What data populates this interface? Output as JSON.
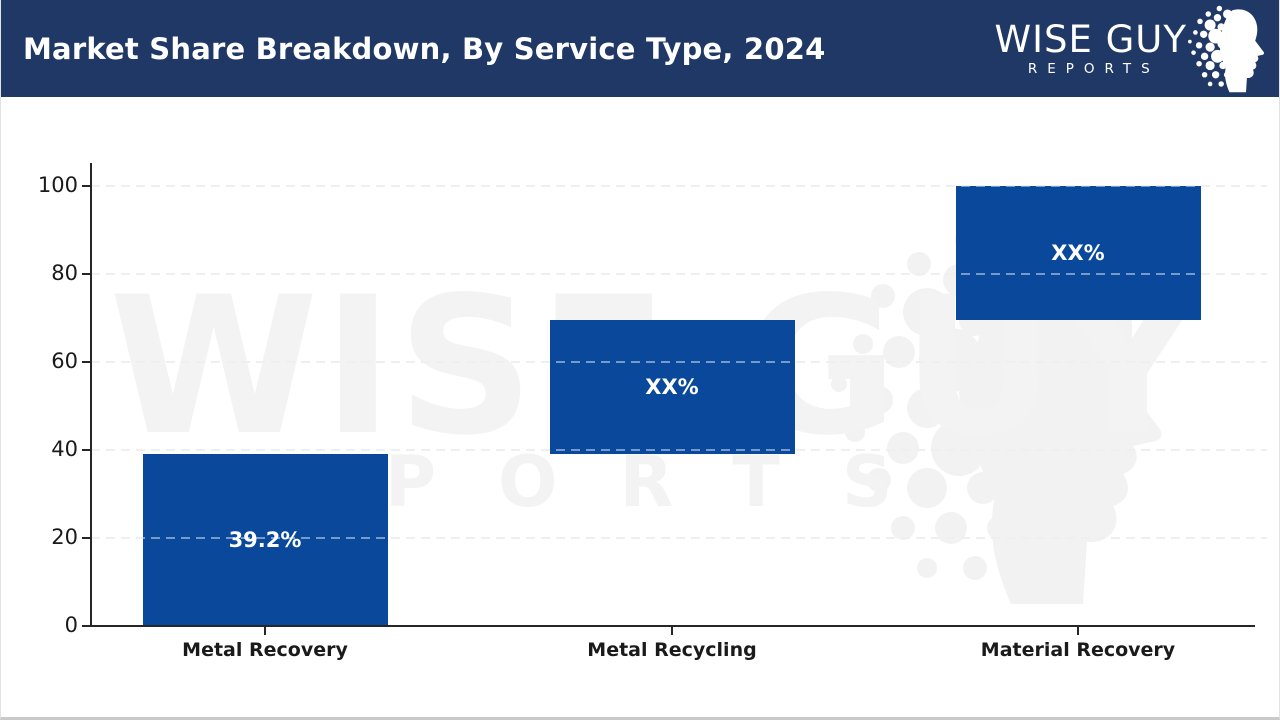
{
  "header": {
    "title": "Market Share Breakdown, By Service Type, 2024",
    "logo": {
      "brand_line1": "WISE GUY",
      "brand_line2": "REPORTS"
    },
    "colors": {
      "background": "#1f3865",
      "text": "#ffffff"
    }
  },
  "watermark": {
    "line1": "WISE GUY",
    "line2": "REPORTS"
  },
  "chart_data": {
    "type": "bar",
    "variant": "floating-range-bars (cumulative market-share breakdown)",
    "title": "Market Share Breakdown, By Service Type, 2024",
    "categories": [
      "Metal Recovery",
      "Metal Recycling",
      "Material Recovery"
    ],
    "series": [
      {
        "name": "Market share (%)",
        "segments": [
          {
            "category": "Metal Recovery",
            "start": 0,
            "end": 39.2,
            "label": "39.2%"
          },
          {
            "category": "Metal Recycling",
            "start": 39.2,
            "end": 69.6,
            "label": "XX%"
          },
          {
            "category": "Material Recovery",
            "start": 69.6,
            "end": 100,
            "label": "XX%"
          }
        ]
      }
    ],
    "xlabel": "",
    "ylabel": "",
    "y_ticks": [
      0,
      20,
      40,
      60,
      80,
      100
    ],
    "ylim": [
      0,
      105
    ],
    "grid": {
      "horizontal": true,
      "style": "dashed"
    },
    "legend": "none",
    "bar_color": "#0a489c",
    "bar_label_color": "#ffffff",
    "axis_color": "#262626",
    "grid_color": "#e2e2e2",
    "tick_label_color": "#1a1a1a"
  }
}
